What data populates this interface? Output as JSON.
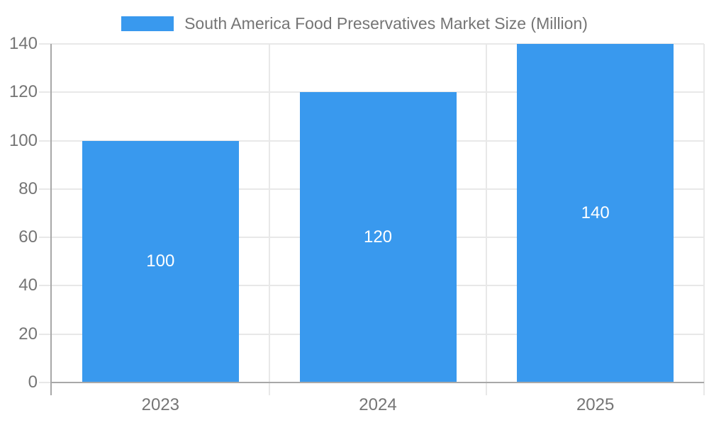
{
  "chart_data": {
    "type": "bar",
    "title": "South America Food Preservatives Market Size (Million)",
    "categories": [
      "2023",
      "2024",
      "2025"
    ],
    "values": [
      100,
      120,
      140
    ],
    "value_labels": [
      "100",
      "120",
      "140"
    ],
    "y_ticks": [
      "0",
      "20",
      "40",
      "60",
      "80",
      "100",
      "120",
      "140"
    ],
    "ylim": [
      0,
      140
    ],
    "xlabel": "",
    "ylabel": "",
    "grid": true,
    "legend_position": "top-center",
    "value_label_position": "inside-center"
  },
  "legend": {
    "label": "South America Food Preservatives Market Size (Million)"
  },
  "colors": {
    "bar": "#3999ee",
    "grid_line": "#e8e8e8",
    "axis_line": "#a8a8a8",
    "tick_text": "#757575",
    "legend_text": "#757575",
    "value_text": "#ffffff",
    "background": "#ffffff"
  }
}
